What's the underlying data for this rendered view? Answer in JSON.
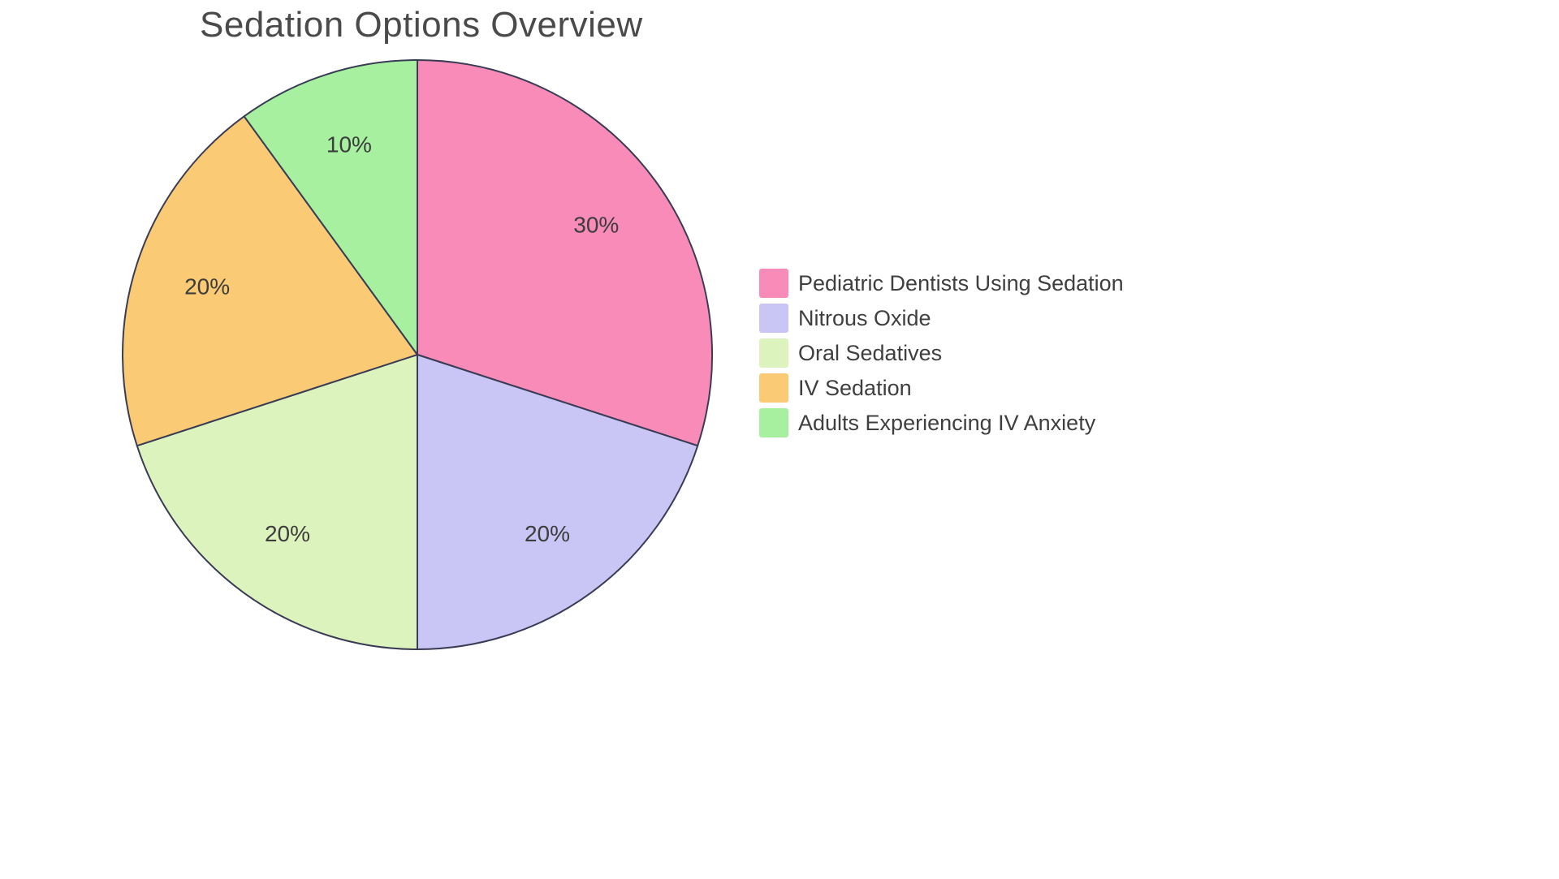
{
  "chart_data": {
    "type": "pie",
    "title": "Sedation Options Overview",
    "labels": [
      "Pediatric Dentists Using Sedation",
      "Nitrous Oxide",
      "Oral Sedatives",
      "IV Sedation",
      "Adults Experiencing IV Anxiety"
    ],
    "values": [
      30,
      20,
      20,
      20,
      10
    ],
    "slice_labels": [
      "30%",
      "20%",
      "20%",
      "20%",
      "10%"
    ],
    "colors": [
      "#F98BB9",
      "#C9C5F4",
      "#DDF3BE",
      "#FACB74",
      "#A6F0A0"
    ],
    "stroke_color": "#3A3C55",
    "title_color": "#4a4a4a",
    "label_color": "#3d3d3d",
    "start_angle_deg": 0,
    "direction": "clockwise",
    "legend_position": "right",
    "grid": false
  }
}
